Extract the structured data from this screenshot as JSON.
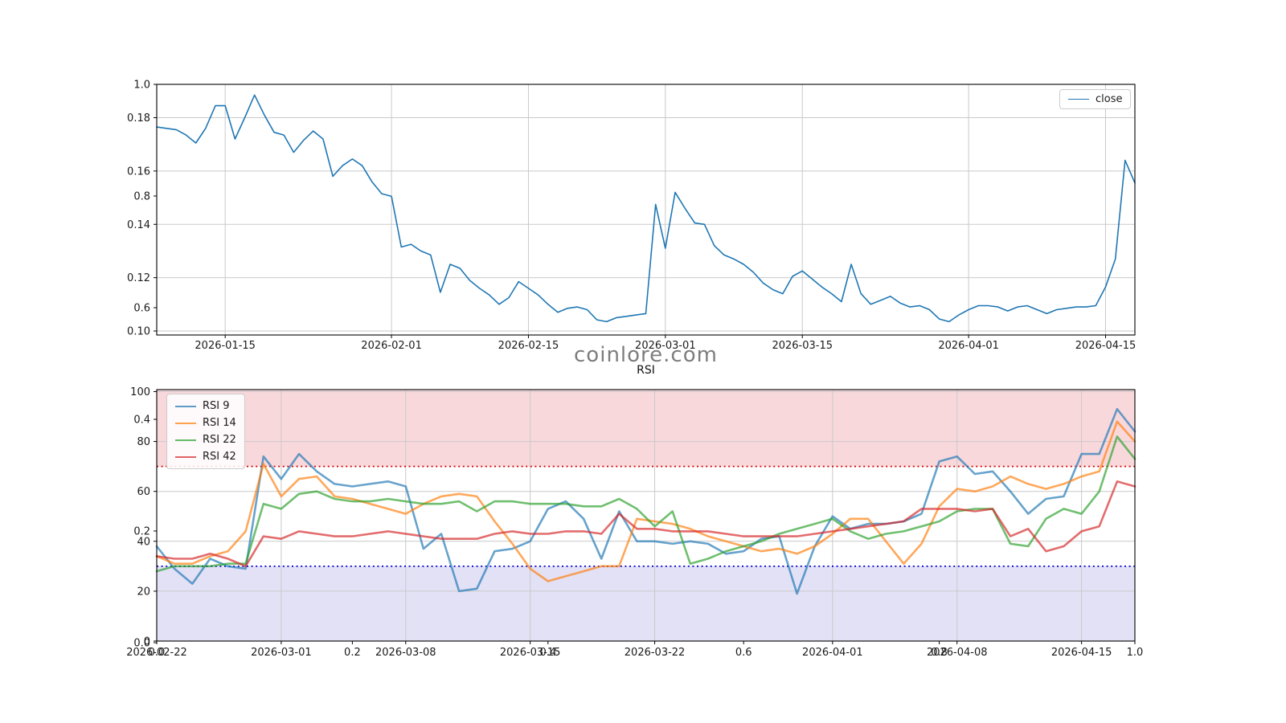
{
  "watermark": "coinlore.com",
  "overlay_axis": {
    "y_ticks": [
      "1.0",
      "0.8",
      "0.6",
      "0.4",
      "0.2",
      "0.0"
    ],
    "x_ticks": [
      "0.0",
      "0.2",
      "0.4",
      "0.6",
      "0.8",
      "1.0"
    ]
  },
  "chart_data": [
    {
      "type": "line",
      "title": "",
      "xlabel": "",
      "ylabel": "",
      "grid": true,
      "legend_position": "upper right",
      "ylim": [
        0.0985,
        0.1925
      ],
      "y_ticks": [
        "0.18",
        "0.16",
        "0.14",
        "0.12",
        "0.10"
      ],
      "x_ticks": [
        "2026-01-15",
        "2026-02-01",
        "2026-02-15",
        "2026-03-01",
        "2026-03-15",
        "2026-04-01",
        "2026-04-15"
      ],
      "dates": [
        "2026-01-08",
        "2026-01-09",
        "2026-01-10",
        "2026-01-11",
        "2026-01-12",
        "2026-01-13",
        "2026-01-14",
        "2026-01-15",
        "2026-01-16",
        "2026-01-17",
        "2026-01-18",
        "2026-01-19",
        "2026-01-20",
        "2026-01-21",
        "2026-01-22",
        "2026-01-23",
        "2026-01-24",
        "2026-01-25",
        "2026-01-26",
        "2026-01-27",
        "2026-01-28",
        "2026-01-29",
        "2026-01-30",
        "2026-01-31",
        "2026-02-01",
        "2026-02-02",
        "2026-02-03",
        "2026-02-04",
        "2026-02-05",
        "2026-02-06",
        "2026-02-07",
        "2026-02-08",
        "2026-02-09",
        "2026-02-10",
        "2026-02-11",
        "2026-02-12",
        "2026-02-13",
        "2026-02-14",
        "2026-02-15",
        "2026-02-16",
        "2026-02-17",
        "2026-02-18",
        "2026-02-19",
        "2026-02-20",
        "2026-02-21",
        "2026-02-22",
        "2026-02-23",
        "2026-02-24",
        "2026-02-25",
        "2026-02-26",
        "2026-02-27",
        "2026-02-28",
        "2026-03-01",
        "2026-03-02",
        "2026-03-03",
        "2026-03-04",
        "2026-03-05",
        "2026-03-06",
        "2026-03-07",
        "2026-03-08",
        "2026-03-09",
        "2026-03-10",
        "2026-03-11",
        "2026-03-12",
        "2026-03-13",
        "2026-03-14",
        "2026-03-15",
        "2026-03-16",
        "2026-03-17",
        "2026-03-18",
        "2026-03-19",
        "2026-03-20",
        "2026-03-21",
        "2026-03-22",
        "2026-03-23",
        "2026-03-24",
        "2026-03-25",
        "2026-03-26",
        "2026-03-27",
        "2026-03-28",
        "2026-03-29",
        "2026-03-30",
        "2026-03-31",
        "2026-04-01",
        "2026-04-02",
        "2026-04-03",
        "2026-04-04",
        "2026-04-05",
        "2026-04-06",
        "2026-04-07",
        "2026-04-08",
        "2026-04-09",
        "2026-04-10",
        "2026-04-11",
        "2026-04-12",
        "2026-04-13",
        "2026-04-14",
        "2026-04-15",
        "2026-04-16",
        "2026-04-17",
        "2026-04-18"
      ],
      "series": [
        {
          "name": "close",
          "color": "#1f77b4",
          "width": 1.6,
          "opacity": 1,
          "values": [
            0.1765,
            0.176,
            0.1755,
            0.1735,
            0.1705,
            0.176,
            0.1845,
            0.1845,
            0.172,
            0.18,
            0.1885,
            0.181,
            0.1745,
            0.1735,
            0.167,
            0.1715,
            0.175,
            0.172,
            0.158,
            0.162,
            0.1645,
            0.162,
            0.156,
            0.1515,
            0.1505,
            0.1315,
            0.1325,
            0.13,
            0.1285,
            0.1145,
            0.125,
            0.1235,
            0.119,
            0.116,
            0.1135,
            0.11,
            0.1125,
            0.1185,
            0.116,
            0.1135,
            0.11,
            0.107,
            0.1085,
            0.109,
            0.108,
            0.1042,
            0.1035,
            0.105,
            0.1055,
            0.106,
            0.1065,
            0.1475,
            0.131,
            0.152,
            0.146,
            0.1405,
            0.14,
            0.132,
            0.1285,
            0.127,
            0.125,
            0.122,
            0.118,
            0.1155,
            0.114,
            0.1205,
            0.1225,
            0.1195,
            0.1165,
            0.114,
            0.111,
            0.125,
            0.114,
            0.11,
            0.1115,
            0.113,
            0.1105,
            0.109,
            0.1095,
            0.108,
            0.1045,
            0.1035,
            0.106,
            0.108,
            0.1095,
            0.1095,
            0.109,
            0.1075,
            0.109,
            0.1095,
            0.108,
            0.1065,
            0.108,
            0.1085,
            0.109,
            0.109,
            0.1095,
            0.1165,
            0.127,
            0.164,
            0.1555
          ]
        }
      ]
    },
    {
      "type": "line",
      "title": "RSI",
      "xlabel": "",
      "ylabel": "",
      "grid": true,
      "legend_position": "upper left",
      "ylim": [
        0,
        100.8
      ],
      "y_ticks": [
        "100",
        "80",
        "60",
        "40",
        "20",
        "0"
      ],
      "x_ticks": [
        "2026-02-22",
        "2026-03-01",
        "2026-03-08",
        "2026-03-15",
        "2026-03-22",
        "2026-04-01",
        "2026-04-08",
        "2026-04-15"
      ],
      "bands": [
        {
          "from": 70,
          "to": 100.8,
          "color": "#f9d8dc"
        },
        {
          "from": 0,
          "to": 30,
          "color": "#e3e1f6"
        }
      ],
      "hlines": [
        {
          "value": 70,
          "color": "#d40000",
          "style": "dotted"
        },
        {
          "value": 30,
          "color": "#0000cc",
          "style": "dotted"
        }
      ],
      "dates": [
        "2026-02-22",
        "2026-02-23",
        "2026-02-24",
        "2026-02-25",
        "2026-02-26",
        "2026-02-27",
        "2026-02-28",
        "2026-03-01",
        "2026-03-02",
        "2026-03-03",
        "2026-03-04",
        "2026-03-05",
        "2026-03-06",
        "2026-03-07",
        "2026-03-08",
        "2026-03-09",
        "2026-03-10",
        "2026-03-11",
        "2026-03-12",
        "2026-03-13",
        "2026-03-14",
        "2026-03-15",
        "2026-03-16",
        "2026-03-17",
        "2026-03-18",
        "2026-03-19",
        "2026-03-20",
        "2026-03-21",
        "2026-03-22",
        "2026-03-23",
        "2026-03-24",
        "2026-03-25",
        "2026-03-26",
        "2026-03-27",
        "2026-03-28",
        "2026-03-29",
        "2026-03-30",
        "2026-03-31",
        "2026-04-01",
        "2026-04-02",
        "2026-04-03",
        "2026-04-04",
        "2026-04-05",
        "2026-04-06",
        "2026-04-07",
        "2026-04-08",
        "2026-04-09",
        "2026-04-10",
        "2026-04-11",
        "2026-04-12",
        "2026-04-13",
        "2026-04-14",
        "2026-04-15",
        "2026-04-16",
        "2026-04-17",
        "2026-04-18"
      ],
      "series": [
        {
          "name": "RSI 9",
          "color": "#1f77b4",
          "width": 2.6,
          "opacity": 0.68,
          "values": [
            38,
            29,
            23,
            33,
            30,
            29,
            74,
            65,
            75,
            68,
            63,
            62,
            63,
            64,
            62,
            37,
            43,
            20,
            21,
            36,
            37,
            40,
            53,
            56,
            49,
            33,
            52,
            40,
            40,
            39,
            40,
            39,
            35,
            36,
            41,
            42,
            19,
            38,
            50,
            45,
            47,
            47,
            48,
            51,
            72,
            74,
            67,
            68,
            60,
            51,
            57,
            58,
            75,
            75,
            93,
            84
          ]
        },
        {
          "name": "RSI 14",
          "color": "#ff7f0e",
          "width": 2.6,
          "opacity": 0.68,
          "values": [
            34,
            31,
            31,
            34,
            36,
            44,
            71,
            58,
            65,
            66,
            58,
            57,
            55,
            53,
            51,
            55,
            58,
            59,
            58,
            48,
            39,
            29,
            24,
            26,
            28,
            30,
            30,
            49,
            48,
            47,
            45,
            42,
            40,
            38,
            36,
            37,
            35,
            38,
            43,
            49,
            49,
            40,
            31,
            39,
            54,
            61,
            60,
            62,
            66,
            63,
            61,
            63,
            66,
            68,
            88,
            80
          ]
        },
        {
          "name": "RSI 22",
          "color": "#2ca02c",
          "width": 2.6,
          "opacity": 0.68,
          "values": [
            28,
            30,
            30,
            30,
            31,
            31,
            55,
            53,
            59,
            60,
            57,
            56,
            56,
            57,
            56,
            55,
            55,
            56,
            52,
            56,
            56,
            55,
            55,
            55,
            54,
            54,
            57,
            53,
            46,
            52,
            31,
            33,
            36,
            38,
            40,
            43,
            45,
            47,
            49,
            44,
            41,
            43,
            44,
            46,
            48,
            52,
            53,
            53,
            39,
            38,
            49,
            53,
            51,
            60,
            82,
            73
          ]
        },
        {
          "name": "RSI 42",
          "color": "#d62728",
          "width": 2.6,
          "opacity": 0.68,
          "values": [
            34,
            33,
            33,
            35,
            33,
            30,
            42,
            41,
            44,
            43,
            42,
            42,
            43,
            44,
            43,
            42,
            41,
            41,
            41,
            43,
            44,
            43,
            43,
            44,
            44,
            43,
            51,
            45,
            45,
            44,
            44,
            44,
            43,
            42,
            42,
            42,
            42,
            43,
            44,
            45,
            46,
            47,
            48,
            53,
            53,
            53,
            52,
            53,
            42,
            45,
            36,
            38,
            44,
            46,
            64,
            62
          ]
        }
      ]
    }
  ]
}
